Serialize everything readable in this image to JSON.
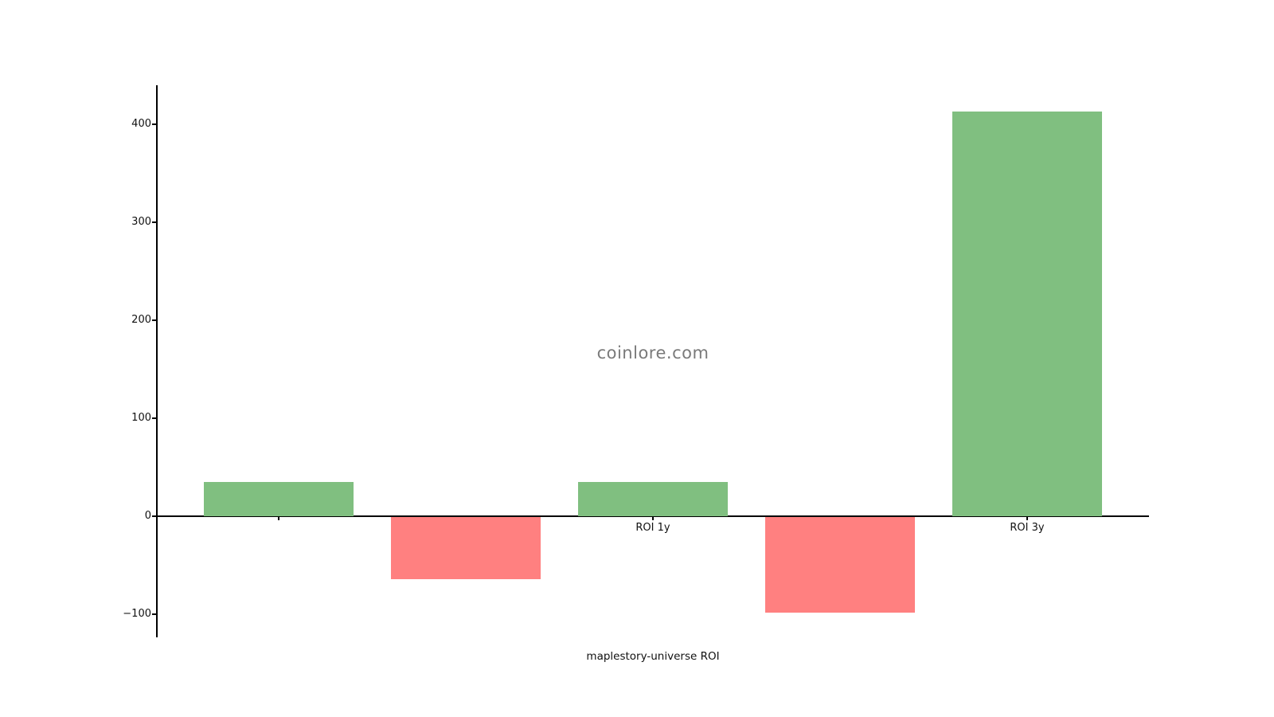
{
  "watermark": {
    "text": "coinlore.com",
    "color": "#7a7a7a"
  },
  "chart_data": {
    "type": "bar",
    "title": "maplestory-universe ROI",
    "xlabel": "",
    "ylabel": "",
    "categories": [
      "",
      "",
      "ROI 1y",
      "",
      "ROI 3y"
    ],
    "values": [
      35,
      -64,
      35,
      -98,
      413
    ],
    "positive_color": "#80bf80",
    "negative_color": "#ff8080",
    "axis_color": "#000000",
    "ylim": [
      -124,
      440
    ],
    "yticks": [
      400,
      300,
      200,
      100,
      0,
      -100
    ],
    "ytick_labels": [
      "400",
      "300",
      "200",
      "100",
      "0",
      "−100"
    ],
    "xtick_indices": [
      0,
      2,
      4
    ],
    "xtick_labels": [
      "",
      "ROI 1y",
      "ROI 3y"
    ],
    "grid": false,
    "legend": null,
    "watermark": "coinlore.com"
  }
}
